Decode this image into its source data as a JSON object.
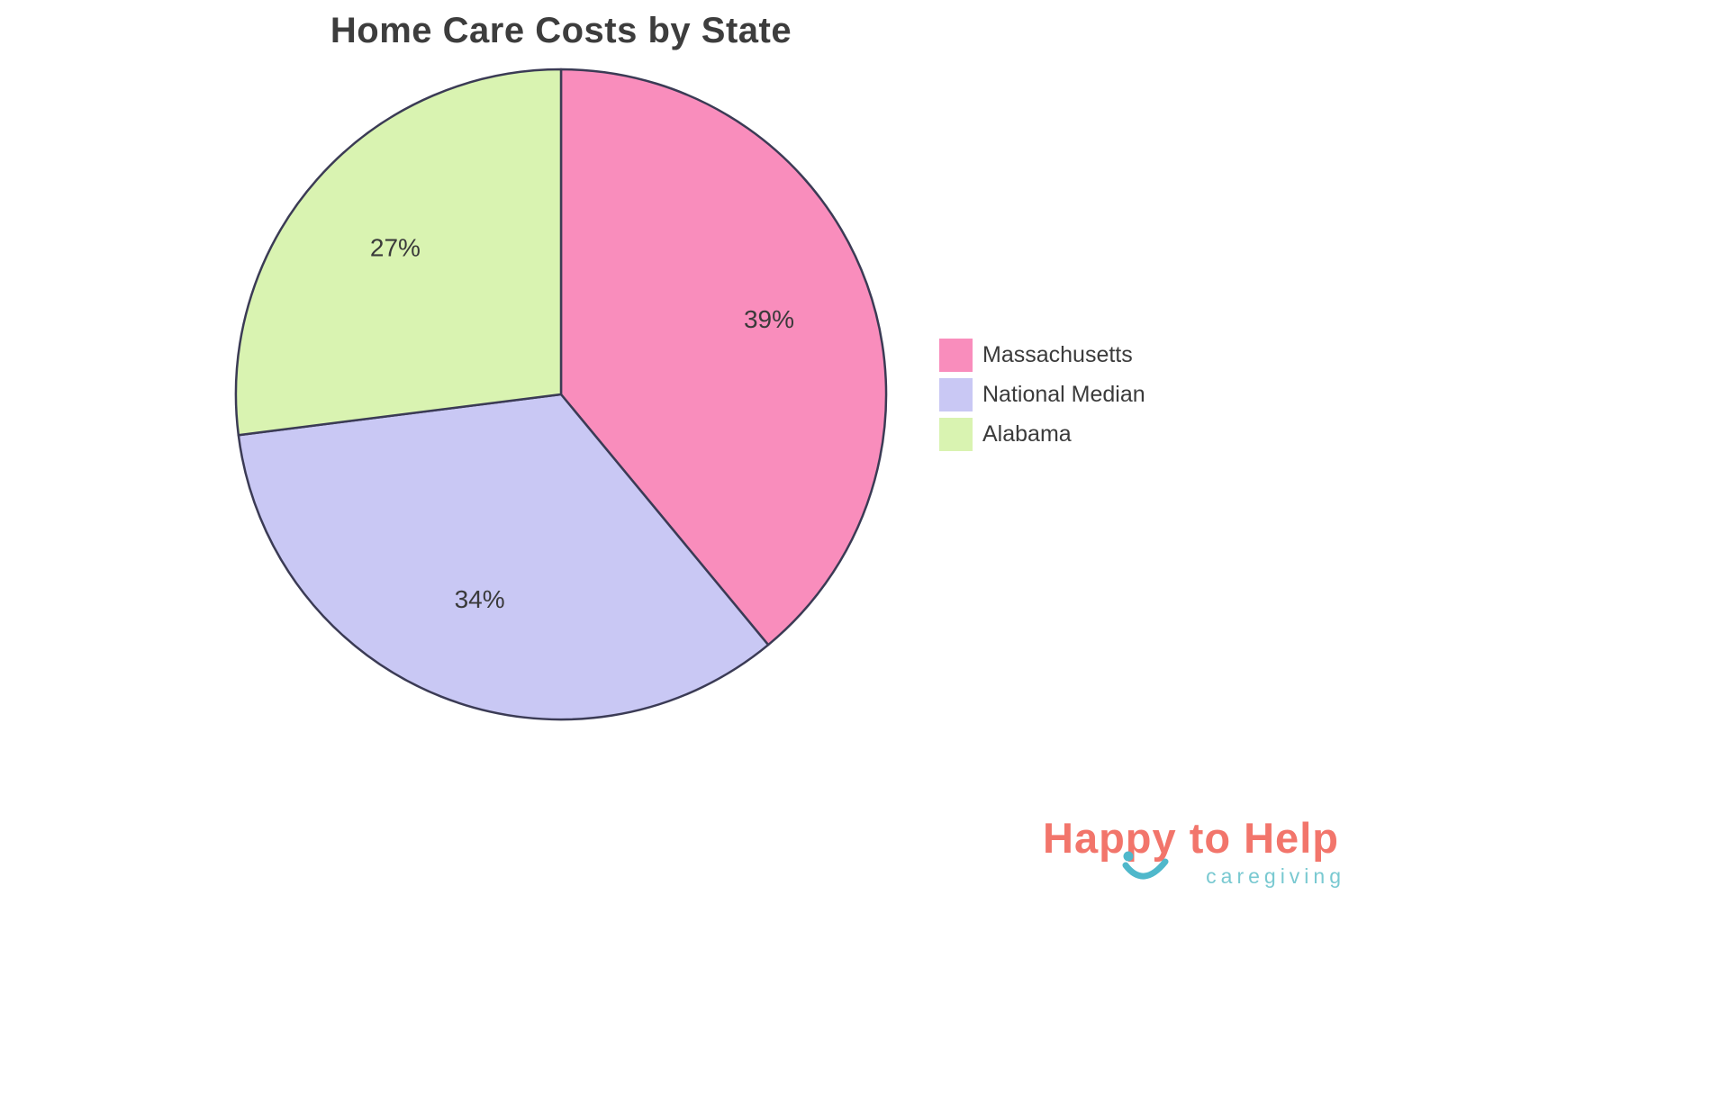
{
  "chart_data": {
    "type": "pie",
    "title": "Home Care Costs by State",
    "labels": [
      "Massachusetts",
      "National Median",
      "Alabama"
    ],
    "values": [
      39,
      34,
      27
    ],
    "value_labels": [
      "39%",
      "34%",
      "27%"
    ],
    "colors": [
      "#F98DBC",
      "#C9C8F4",
      "#D9F3B1"
    ],
    "stroke_color": "#3B3B55",
    "value_format": "percent",
    "legend_position": "right",
    "start_angle_deg": 0,
    "direction": "clockwise"
  },
  "legend": {
    "items": [
      {
        "label": "Massachusetts",
        "color": "#F98DBC"
      },
      {
        "label": "National Median",
        "color": "#C9C8F4"
      },
      {
        "label": "Alabama",
        "color": "#D9F3B1"
      }
    ]
  },
  "logo": {
    "text": "Happy to Help",
    "subtext": "caregiving",
    "text_color": "#F2756B",
    "subtext_color": "#79C9D1",
    "smiley_color": "#4FB8CB"
  }
}
